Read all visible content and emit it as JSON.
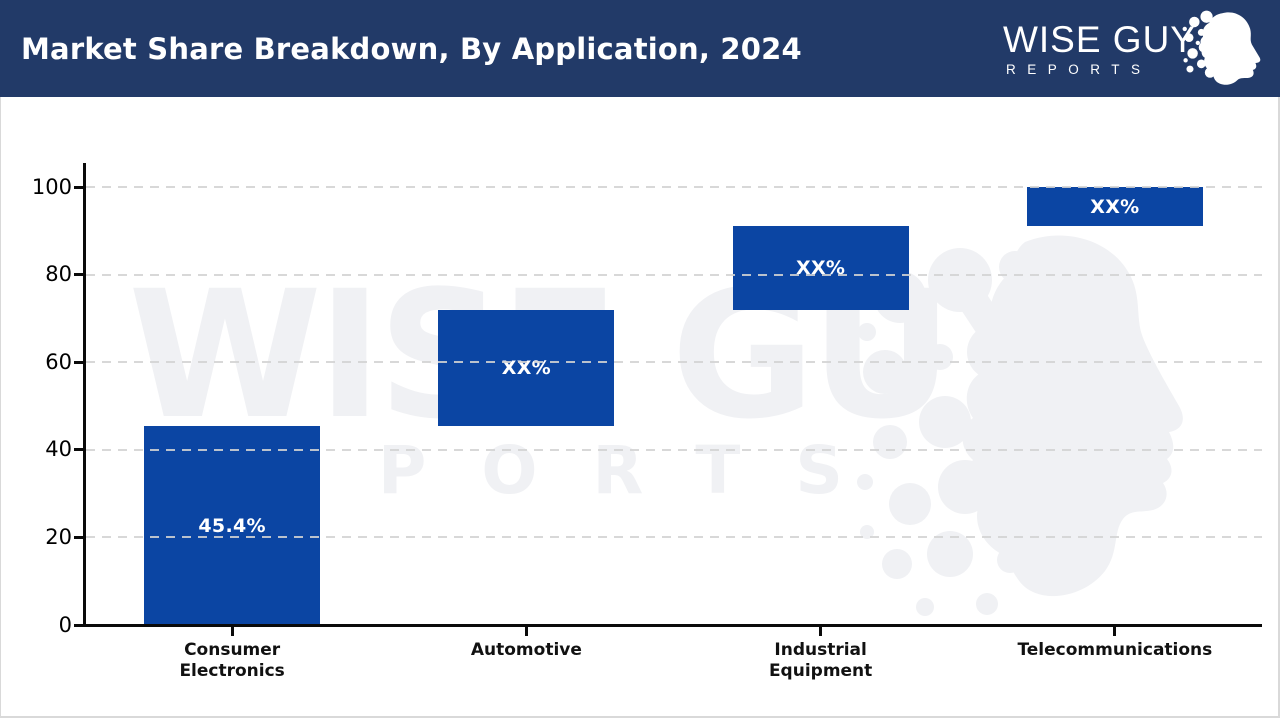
{
  "header": {
    "title": "Market Share Breakdown, By Application, 2024",
    "bg_color": "#223a68",
    "logo": {
      "line1": "WISE GUY",
      "line2": "REPORTS"
    }
  },
  "watermark": {
    "line1": "WISE GUY",
    "line2": "PORTS"
  },
  "chart_data": {
    "type": "bar",
    "subtype": "waterfall-stacked-breakdown",
    "title": "Market Share Breakdown, By Application, 2024",
    "categories": [
      "Consumer\nElectronics",
      "Automotive",
      "Industrial\nEquipment",
      "Telecommunications"
    ],
    "segments": [
      {
        "category": "Consumer Electronics",
        "start": 0,
        "end": 45.4,
        "value": 45.4,
        "label": "45.4%"
      },
      {
        "category": "Automotive",
        "start": 45.4,
        "end": 72,
        "value": 26.6,
        "label": "XX%"
      },
      {
        "category": "Industrial Equipment",
        "start": 72,
        "end": 91,
        "value": 19,
        "label": "XX%"
      },
      {
        "category": "Telecommunications",
        "start": 91,
        "end": 100,
        "value": 9,
        "label": "XX%"
      }
    ],
    "yticks": [
      0,
      20,
      40,
      60,
      80,
      100
    ],
    "ylim": [
      0,
      105
    ],
    "xlabel": "",
    "ylabel": "",
    "bar_color": "#0b45a3",
    "bar_label_color": "#ffffff",
    "grid": "horizontal-dashed",
    "grid_color": "#d3d3d3",
    "legend": "none"
  }
}
